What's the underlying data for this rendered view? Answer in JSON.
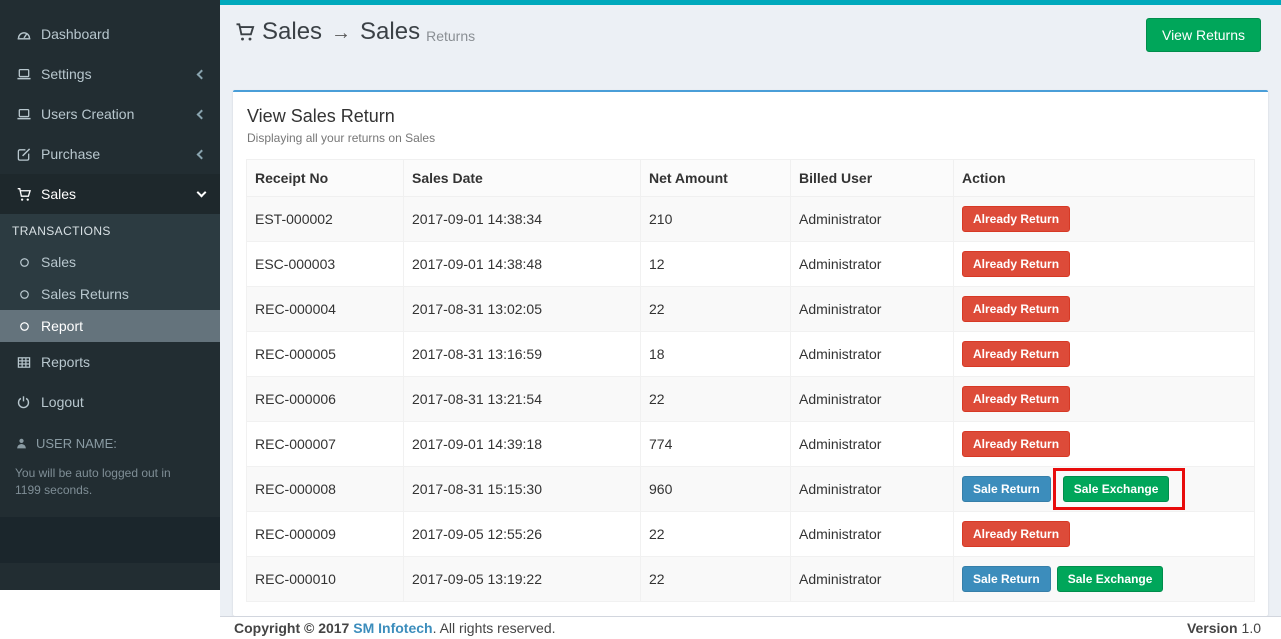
{
  "colors": {
    "accent_teal": "#00a9bc",
    "sidebar_bg": "#222d32",
    "sidebar_active_bg": "#1e282c",
    "panel_top_border": "#4a9ed8",
    "green": "#00a65a",
    "red": "#dd4b39",
    "blue": "#3c8dbc",
    "highlight_red": "#e80c0c"
  },
  "sidebar": {
    "items": [
      {
        "label": "Dashboard",
        "icon": "dashboard-icon"
      },
      {
        "label": "Settings",
        "icon": "laptop-icon",
        "chevron": "left"
      },
      {
        "label": "Users Creation",
        "icon": "laptop-icon",
        "chevron": "left"
      },
      {
        "label": "Purchase",
        "icon": "edit-icon",
        "chevron": "left"
      },
      {
        "label": "Sales",
        "icon": "cart-icon",
        "chevron": "down",
        "active": true
      }
    ],
    "section_header": "TRANSACTIONS",
    "sub_items": [
      {
        "label": "Sales",
        "icon": "circle-o-icon"
      },
      {
        "label": "Sales Returns",
        "icon": "circle-o-icon"
      },
      {
        "label": "Report",
        "icon": "circle-o-icon",
        "highlighted": true
      }
    ],
    "lower_items": [
      {
        "label": "Reports",
        "icon": "table-icon"
      },
      {
        "label": "Logout",
        "icon": "power-icon"
      }
    ],
    "user_label": "USER NAME:",
    "logout_note": "You will be auto logged out in 1199 seconds."
  },
  "header": {
    "breadcrumb_primary": "Sales",
    "breadcrumb_arrow": "→",
    "breadcrumb_secondary": "Sales",
    "breadcrumb_suffix": "Returns",
    "view_returns_label": "View Returns"
  },
  "panel": {
    "title": "View Sales Return",
    "subtitle": "Displaying all your returns on Sales"
  },
  "table": {
    "columns": [
      "Receipt No",
      "Sales Date",
      "Net Amount",
      "Billed User",
      "Action"
    ],
    "action_labels": {
      "already": "Already Return",
      "sale_return": "Sale Return",
      "sale_exchange": "Sale Exchange"
    },
    "rows": [
      {
        "receipt": "EST-000002",
        "date": "2017-09-01 14:38:34",
        "amount": "210",
        "user": "Administrator",
        "actions": [
          {
            "type": "already"
          }
        ]
      },
      {
        "receipt": "ESC-000003",
        "date": "2017-09-01 14:38:48",
        "amount": "12",
        "user": "Administrator",
        "actions": [
          {
            "type": "already"
          }
        ]
      },
      {
        "receipt": "REC-000004",
        "date": "2017-08-31 13:02:05",
        "amount": "22",
        "user": "Administrator",
        "actions": [
          {
            "type": "already"
          }
        ]
      },
      {
        "receipt": "REC-000005",
        "date": "2017-08-31 13:16:59",
        "amount": "18",
        "user": "Administrator",
        "actions": [
          {
            "type": "already"
          }
        ]
      },
      {
        "receipt": "REC-000006",
        "date": "2017-08-31 13:21:54",
        "amount": "22",
        "user": "Administrator",
        "actions": [
          {
            "type": "already"
          }
        ]
      },
      {
        "receipt": "REC-000007",
        "date": "2017-09-01 14:39:18",
        "amount": "774",
        "user": "Administrator",
        "actions": [
          {
            "type": "already"
          }
        ]
      },
      {
        "receipt": "REC-000008",
        "date": "2017-08-31 15:15:30",
        "amount": "960",
        "user": "Administrator",
        "actions": [
          {
            "type": "sale_return"
          },
          {
            "type": "sale_exchange",
            "highlighted": true
          }
        ]
      },
      {
        "receipt": "REC-000009",
        "date": "2017-09-05 12:55:26",
        "amount": "22",
        "user": "Administrator",
        "actions": [
          {
            "type": "already"
          }
        ]
      },
      {
        "receipt": "REC-000010",
        "date": "2017-09-05 13:19:22",
        "amount": "22",
        "user": "Administrator",
        "actions": [
          {
            "type": "sale_return"
          },
          {
            "type": "sale_exchange"
          }
        ]
      }
    ]
  },
  "footer": {
    "copyright_prefix": "Copyright © 2017 ",
    "company": "SM Infotech",
    "copyright_suffix": ". All rights reserved.",
    "version_label": "Version",
    "version_number": "1.0"
  }
}
